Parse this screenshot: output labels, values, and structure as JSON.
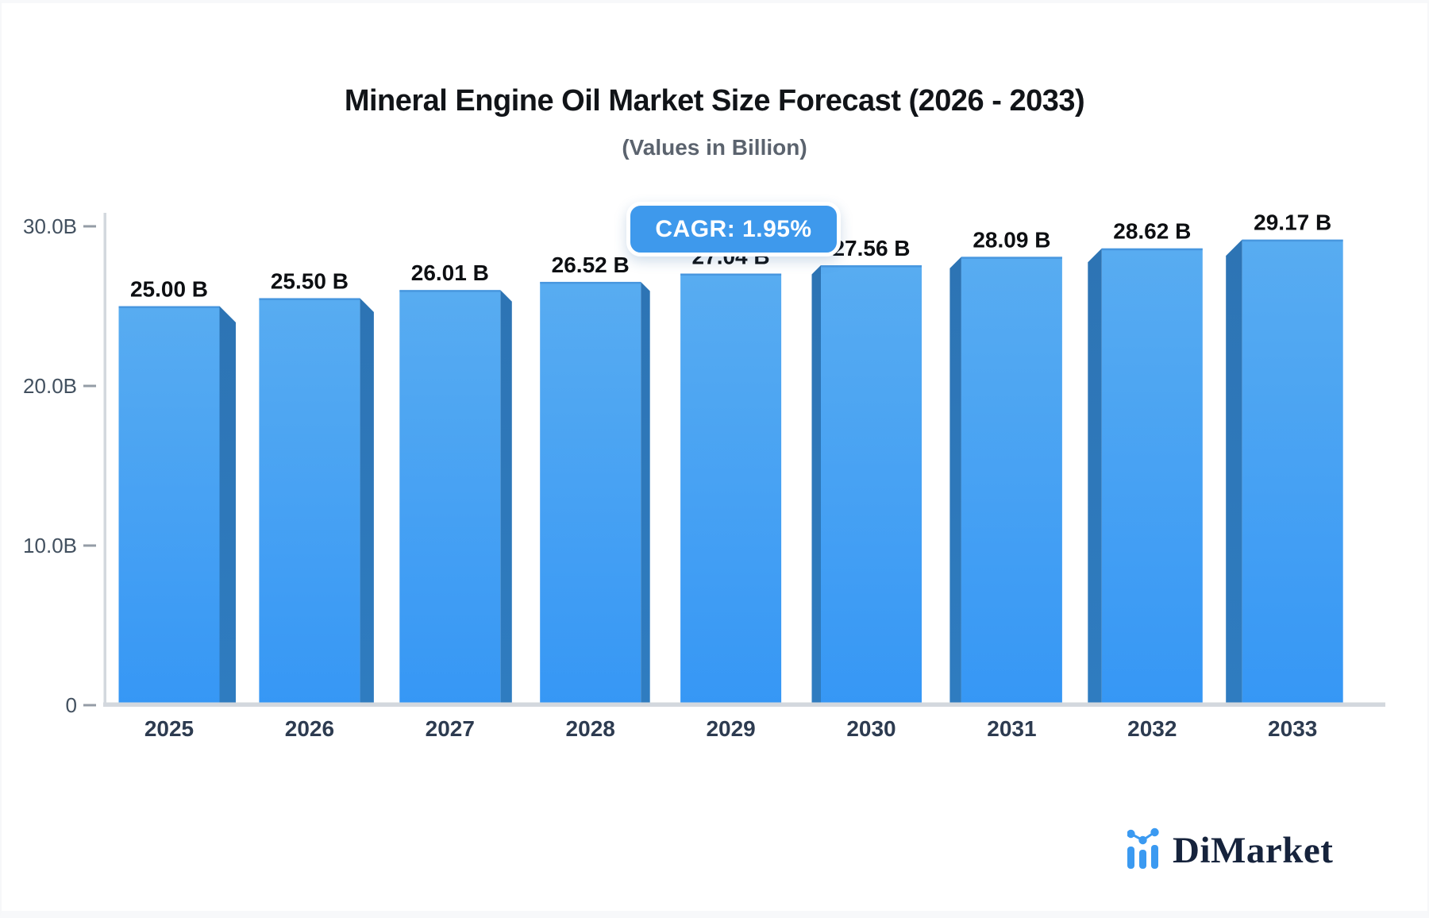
{
  "title": "Mineral Engine Oil Market Size Forecast (2026 - 2033)",
  "subtitle": "(Values in Billion)",
  "badge": {
    "label": "CAGR: 1.95%"
  },
  "brand": {
    "name": "DiMarket"
  },
  "chart_data": {
    "type": "bar",
    "title": "Mineral Engine Oil Market Size Forecast (2026 - 2033)",
    "subtitle": "(Values in Billion)",
    "xlabel": "",
    "ylabel": "",
    "categories": [
      "2025",
      "2026",
      "2027",
      "2028",
      "2029",
      "2030",
      "2031",
      "2032",
      "2033"
    ],
    "values": [
      25.0,
      25.5,
      26.01,
      26.52,
      27.04,
      27.56,
      28.09,
      28.62,
      29.17
    ],
    "value_labels": [
      "25.00 B",
      "25.50 B",
      "26.01 B",
      "26.52 B",
      "27.04 B",
      "27.56 B",
      "28.09 B",
      "28.62 B",
      "29.17 B"
    ],
    "y_ticks": [
      {
        "value": 0,
        "label": "0"
      },
      {
        "value": 10,
        "label": "10.0B"
      },
      {
        "value": 20,
        "label": "20.0B"
      },
      {
        "value": 30,
        "label": "30.0B"
      }
    ],
    "ylim": [
      0,
      30
    ],
    "grid": false,
    "legend": "none",
    "annotations": [
      "CAGR: 1.95%"
    ],
    "colors": {
      "bar_face_top": "#58acf1",
      "bar_face_bottom": "#3697f5",
      "bar_side": "#2e78ba",
      "bar_top_edge": "#3c86cf",
      "axis_line": "#d3d8de",
      "tick_dash": "#949ca6",
      "tick_label": "#42505f",
      "x_label": "#2d3b50",
      "value_label": "#0d0f12",
      "badge_bg": "#3e99ec",
      "badge_text": "#ffffff",
      "title": "#111418",
      "subtitle": "#5b636e",
      "brand_text": "#16233c",
      "brand_icon": "#3b9af1"
    }
  }
}
